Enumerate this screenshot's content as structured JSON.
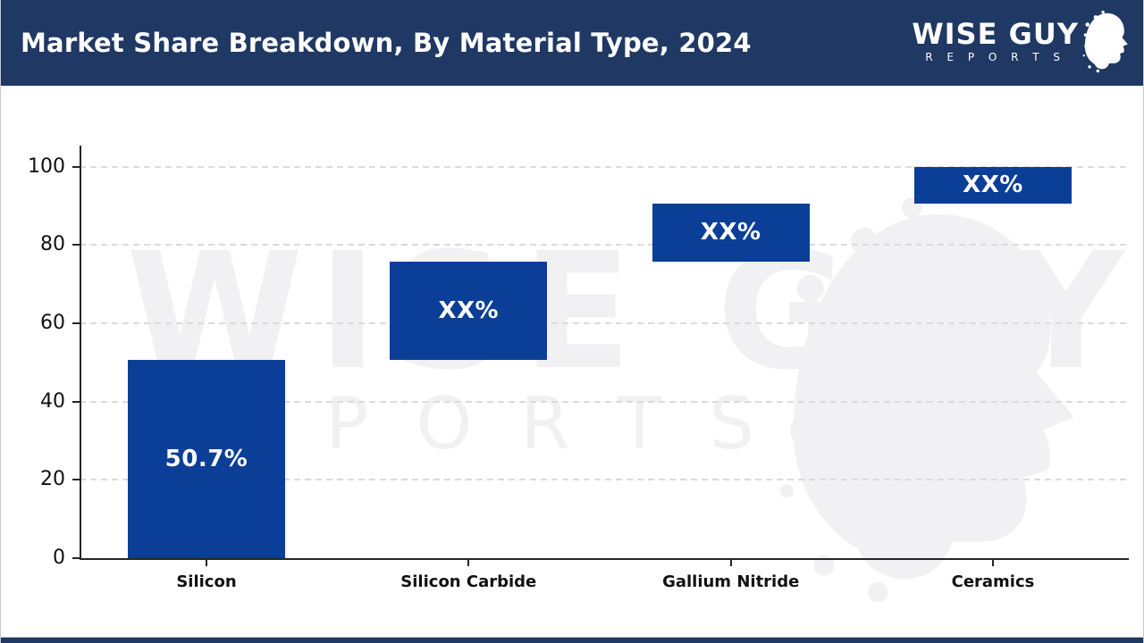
{
  "header": {
    "title": "Market Share Breakdown, By Material Type, 2024",
    "logo": {
      "line1": "WISE GUY",
      "line2": "R E P O R T S"
    }
  },
  "watermark": {
    "line1": "WISE GUY",
    "line2": "R E P O R T S"
  },
  "chart_data": {
    "type": "bar",
    "variant": "waterfall",
    "title": "Market Share Breakdown, By Material Type, 2024",
    "categories": [
      "Silicon",
      "Silicon Carbide",
      "Gallium Nitride",
      "Ceramics"
    ],
    "segments": [
      {
        "start": 0,
        "end": 50.7,
        "label": "50.7%"
      },
      {
        "start": 50.7,
        "end": 75.8,
        "label": "XX%"
      },
      {
        "start": 75.8,
        "end": 90.6,
        "label": "XX%"
      },
      {
        "start": 90.6,
        "end": 100,
        "label": "XX%"
      }
    ],
    "ylim": [
      0,
      105
    ],
    "yticks": [
      0,
      20,
      40,
      60,
      80,
      100
    ],
    "xlabel": "",
    "ylabel": "",
    "grid": "dashed-horizontal",
    "legend": "none"
  },
  "colors": {
    "header_bg": "#1F3864",
    "footer_bg": "#1F3864",
    "bar": "#0B3F97",
    "bar_label": "#FFFFFF",
    "grid": "#DBDBDB",
    "axis": "#262626",
    "watermark": "#F1F1F3"
  }
}
